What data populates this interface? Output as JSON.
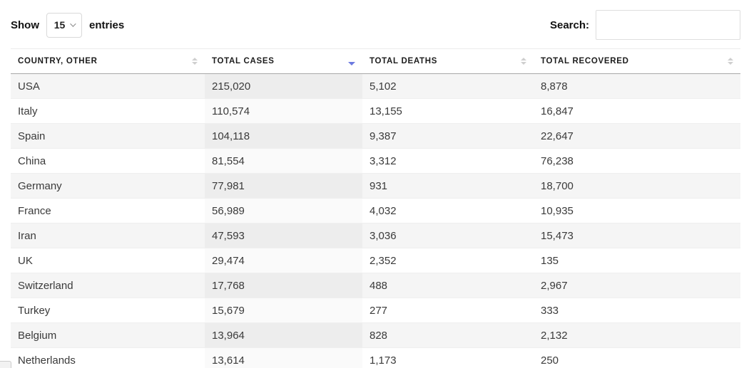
{
  "controls": {
    "show_label": "Show",
    "entries_value": "15",
    "entries_label": "entries",
    "search_label": "Search:",
    "search_value": ""
  },
  "table": {
    "columns": [
      {
        "label": "COUNTRY, OTHER",
        "sort": "none"
      },
      {
        "label": "TOTAL CASES",
        "sort": "desc"
      },
      {
        "label": "TOTAL DEATHS",
        "sort": "none"
      },
      {
        "label": "TOTAL RECOVERED",
        "sort": "none"
      }
    ],
    "rows": [
      {
        "country": "USA",
        "cases": "215,020",
        "deaths": "5,102",
        "recovered": "8,878"
      },
      {
        "country": "Italy",
        "cases": "110,574",
        "deaths": "13,155",
        "recovered": "16,847"
      },
      {
        "country": "Spain",
        "cases": "104,118",
        "deaths": "9,387",
        "recovered": "22,647"
      },
      {
        "country": "China",
        "cases": "81,554",
        "deaths": "3,312",
        "recovered": "76,238"
      },
      {
        "country": "Germany",
        "cases": "77,981",
        "deaths": "931",
        "recovered": "18,700"
      },
      {
        "country": "France",
        "cases": "56,989",
        "deaths": "4,032",
        "recovered": "10,935"
      },
      {
        "country": "Iran",
        "cases": "47,593",
        "deaths": "3,036",
        "recovered": "15,473"
      },
      {
        "country": "UK",
        "cases": "29,474",
        "deaths": "2,352",
        "recovered": "135"
      },
      {
        "country": "Switzerland",
        "cases": "17,768",
        "deaths": "488",
        "recovered": "2,967"
      },
      {
        "country": "Turkey",
        "cases": "15,679",
        "deaths": "277",
        "recovered": "333"
      },
      {
        "country": "Belgium",
        "cases": "13,964",
        "deaths": "828",
        "recovered": "2,132"
      },
      {
        "country": "Netherlands",
        "cases": "13,614",
        "deaths": "1,173",
        "recovered": "250"
      }
    ]
  },
  "colors": {
    "accent": "#6c7ae0",
    "stripe": "#f5f5f5"
  }
}
